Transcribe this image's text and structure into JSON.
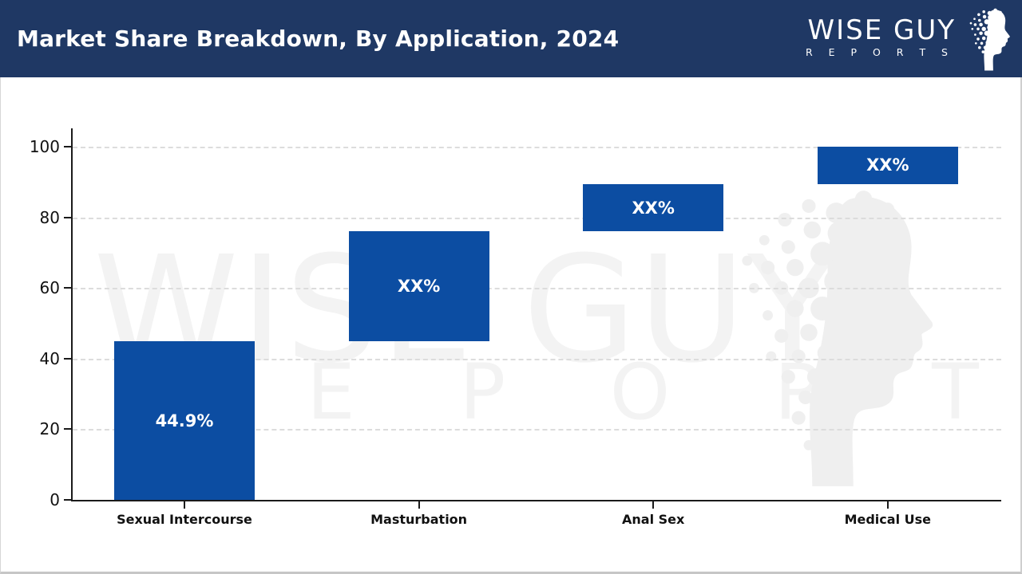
{
  "header": {
    "title": "Market Share Breakdown, By Application, 2024",
    "brand": {
      "line1": "WISE GUY",
      "line2": "R E P O R T S"
    },
    "background_color": "#1F3864"
  },
  "watermark": {
    "line1": "WISE GUY",
    "line2": "R E P O R T S"
  },
  "colors": {
    "header_bg": "#1F3864",
    "bar": "#0C4DA2",
    "bar_label": "#FFFFFF",
    "axis": "#1A1A1A",
    "gridline": "#DCDCDC",
    "watermark": "#F3F3F3"
  },
  "chart_data": {
    "type": "bar",
    "subtype": "waterfall",
    "title": "Market Share Breakdown, By Application, 2024",
    "xlabel": "",
    "ylabel": "",
    "categories": [
      "Sexual Intercourse",
      "Masturbation",
      "Anal Sex",
      "Medical Use"
    ],
    "series": [
      {
        "name": "Market Share (%)",
        "segments": [
          {
            "category": "Sexual Intercourse",
            "start": 0,
            "end": 44.9,
            "label": "44.9%"
          },
          {
            "category": "Masturbation",
            "start": 44.9,
            "end": 76.0,
            "label": "XX%"
          },
          {
            "category": "Anal Sex",
            "start": 76.0,
            "end": 89.4,
            "label": "XX%"
          },
          {
            "category": "Medical Use",
            "start": 89.4,
            "end": 100.0,
            "label": "XX%"
          }
        ]
      }
    ],
    "ylim": [
      0,
      105
    ],
    "yticks": [
      0,
      20,
      40,
      60,
      80,
      100
    ],
    "grid": "horizontal-dashed",
    "legend": "none",
    "bar_color": "#0C4DA2"
  }
}
